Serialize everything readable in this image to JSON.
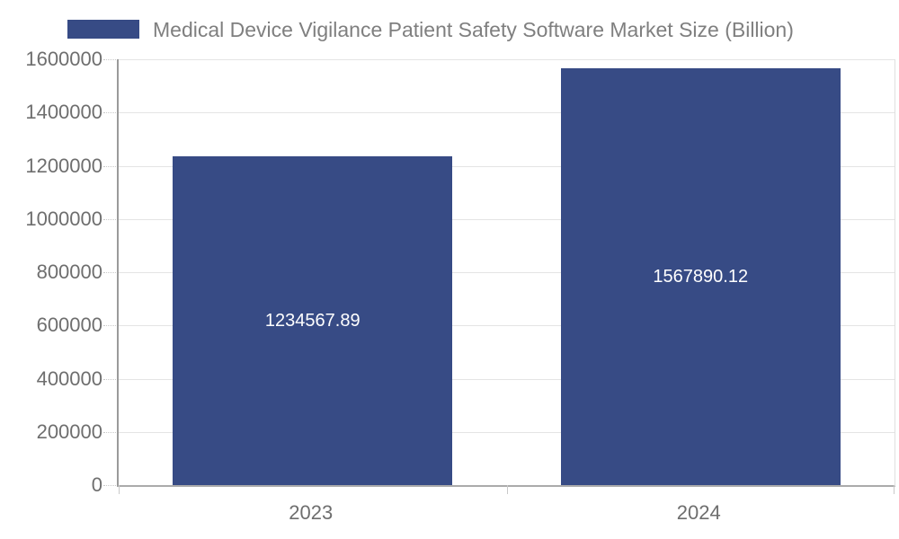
{
  "legend": {
    "label": "Medical Device Vigilance Patient Safety Software Market Size (Billion)"
  },
  "colors": {
    "bar": "#374b85",
    "grid": "#e4e4e4",
    "x_axis": "#ababab",
    "y_axis": "#9a9a9a",
    "tick_mark": "#c9c9c9",
    "tick_text": "#6e6e6e",
    "title_text": "#7f7f7f",
    "value_label": "#ffffff"
  },
  "chart_data": {
    "type": "bar",
    "title": "Medical Device Vigilance Patient Safety Software Market Size (Billion)",
    "categories": [
      "2023",
      "2024"
    ],
    "values": [
      1234567.89,
      1567890.12
    ],
    "value_labels": [
      "1234567.89",
      "1567890.12"
    ],
    "series_color": "#374b85",
    "xlabel": "",
    "ylabel": "",
    "ylim": [
      0,
      1600000
    ],
    "ytick_step": 200000,
    "ytick_labels_top_to_bottom": [
      "1600000",
      "1400000",
      "1200000",
      "1000000",
      "800000",
      "600000",
      "400000",
      "200000",
      "0"
    ],
    "grid": true,
    "legend_position": "top-left",
    "bar_width_fraction": 0.72,
    "value_label_position": "center-of-bar"
  }
}
